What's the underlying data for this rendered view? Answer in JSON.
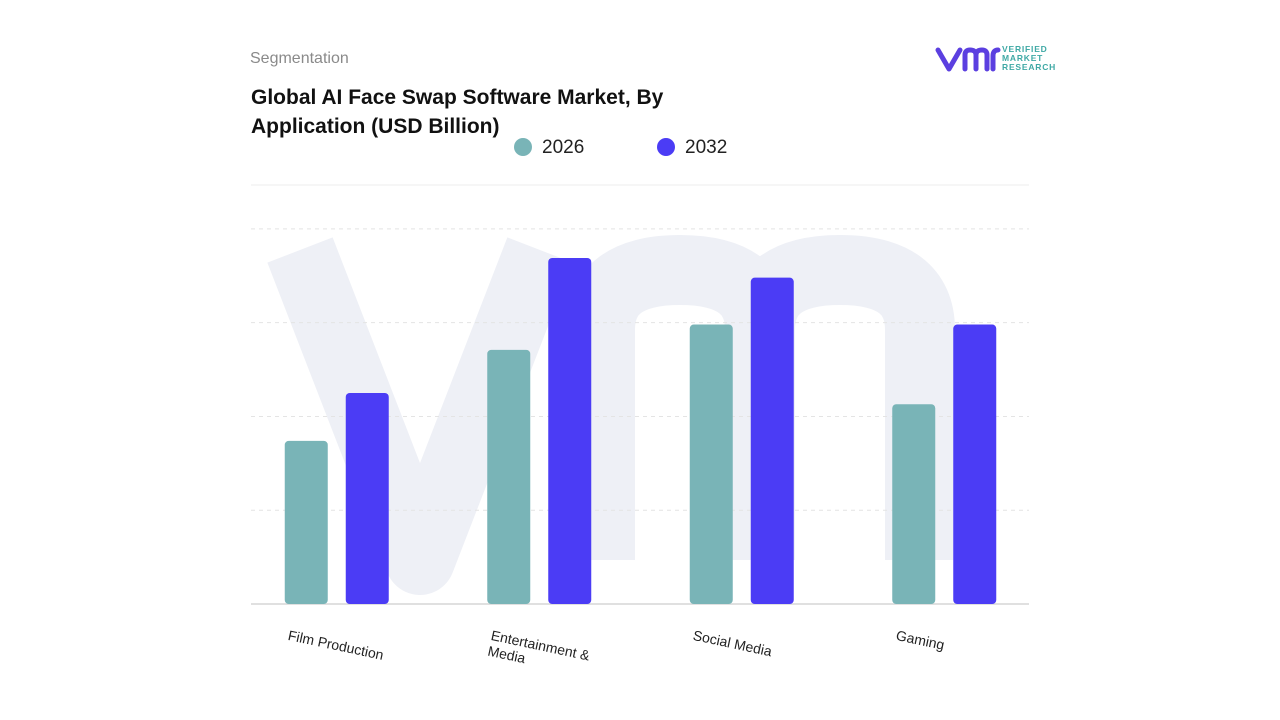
{
  "header": {
    "section": "Segmentation",
    "logo": "VERIFIED MARKET RESEARCH"
  },
  "chart_data": {
    "type": "bar",
    "title": "Global AI Face Swap Software Market, By Application (USD Billion)",
    "categories": [
      "Film Production",
      "Entertainment & Media",
      "Social Media",
      "Gaming"
    ],
    "series": [
      {
        "name": "2026",
        "color": "#79b4b7",
        "values": [
          1.74,
          2.71,
          2.98,
          2.13
        ]
      },
      {
        "name": "2032",
        "color": "#4b3cf5",
        "values": [
          2.25,
          3.69,
          3.48,
          2.98
        ]
      }
    ],
    "ylim": [
      0,
      4.5
    ],
    "yticks": [
      1,
      2,
      3,
      4
    ],
    "grid": true,
    "legend": "top"
  }
}
